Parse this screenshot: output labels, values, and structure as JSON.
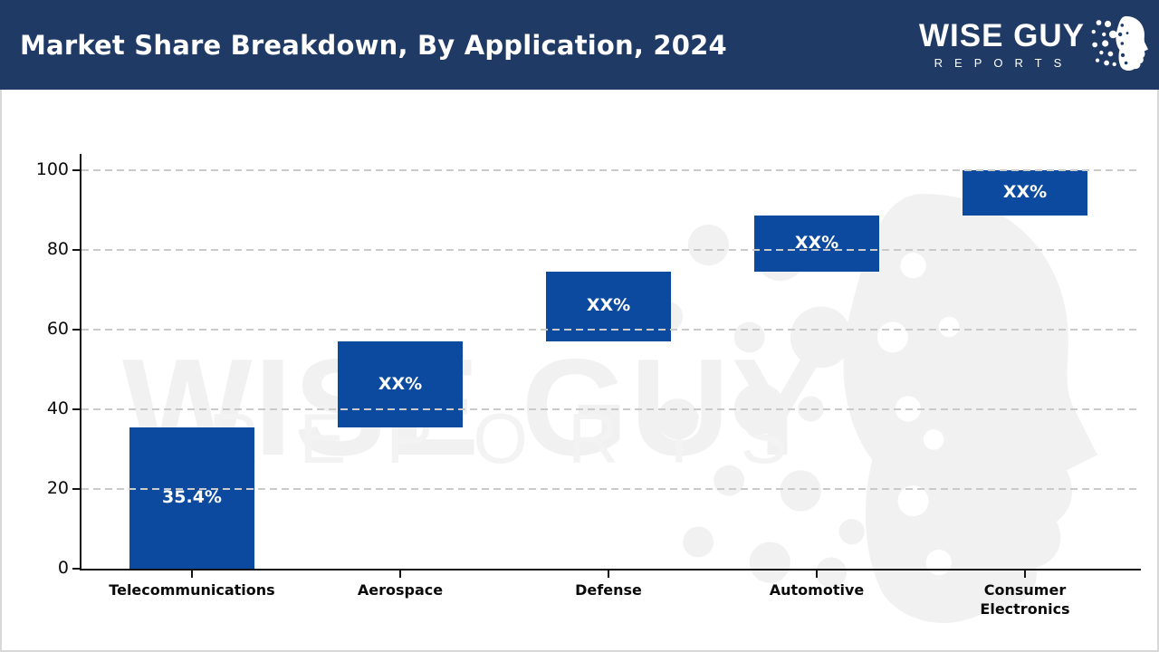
{
  "header": {
    "title": "Market Share Breakdown, By Application, 2024",
    "logo": {
      "brand": "WISE GUY",
      "sub": "REPORTS"
    }
  },
  "watermark": {
    "brand": "WISE GUY",
    "sub": "REPORTS"
  },
  "colors": {
    "header_bg": "#203A66",
    "bar": "#0B4A9F",
    "grid": "#CACACA",
    "axis": "#141414",
    "bar_label": "#FFFFFF",
    "watermark": "#F1F1F1",
    "tick_text": "#0A0A0A"
  },
  "chart_data": {
    "type": "bar",
    "variant": "waterfall",
    "title": "Market Share Breakdown, By Application, 2024",
    "categories": [
      "Telecommunications",
      "Aerospace",
      "Defense",
      "Automotive",
      "Consumer Electronics"
    ],
    "tick_label_display": [
      "Telecommunications",
      "Aerospace",
      "Defense",
      "Automotive",
      "Consumer\nElectronics"
    ],
    "segments": [
      {
        "category": "Telecommunications",
        "start": 0,
        "end": 35.4,
        "label": "35.4%"
      },
      {
        "category": "Aerospace",
        "start": 35.4,
        "end": 57.0,
        "label": "XX%"
      },
      {
        "category": "Defense",
        "start": 57.0,
        "end": 74.5,
        "label": "XX%"
      },
      {
        "category": "Automotive",
        "start": 74.5,
        "end": 88.6,
        "label": "XX%"
      },
      {
        "category": "Consumer Electronics",
        "start": 88.6,
        "end": 100.0,
        "label": "XX%"
      }
    ],
    "yticks": [
      0,
      20,
      40,
      60,
      80,
      100
    ],
    "ylim": [
      0,
      104
    ],
    "xlabel": "",
    "ylabel": "",
    "grid": "dashed-horizontal",
    "gridlines_over_bars": true,
    "legend": "none",
    "bar_color": "#0B4A9F"
  }
}
